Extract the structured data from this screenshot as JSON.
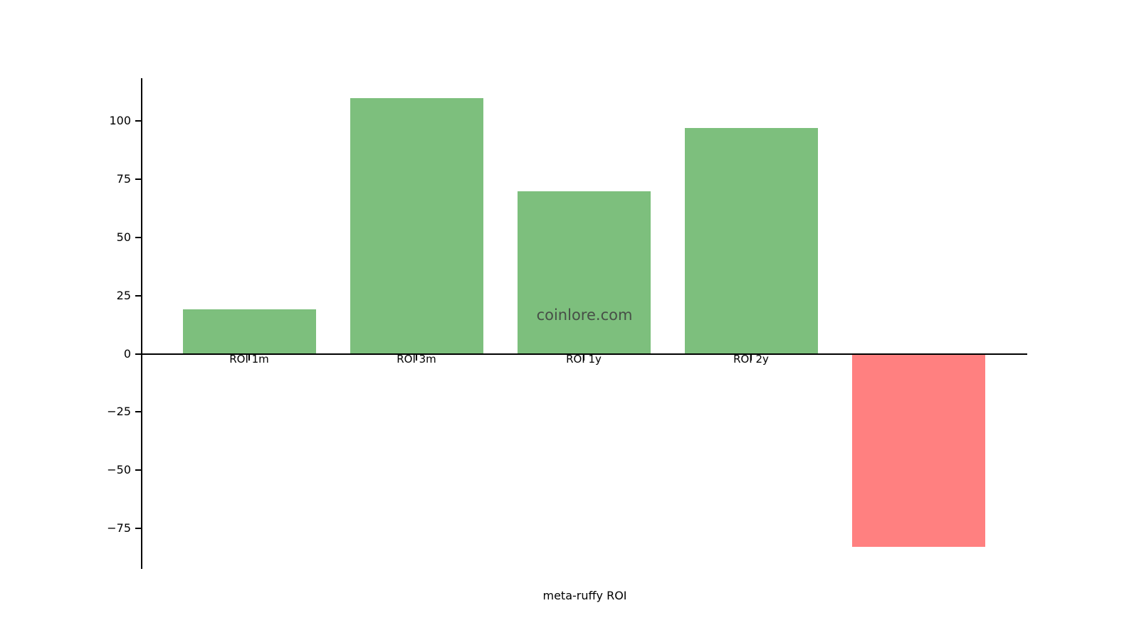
{
  "watermark": "coinlore.com",
  "chart_data": {
    "type": "bar",
    "title": "",
    "xlabel": "meta-ruffy ROI",
    "ylabel": "",
    "categories": [
      "ROI 1m",
      "ROI 3m",
      "ROI 1y",
      "ROI 2y",
      ""
    ],
    "values": [
      19,
      110,
      70,
      97,
      -83
    ],
    "yticks": [
      100,
      75,
      50,
      25,
      0,
      -25,
      -50,
      -75
    ],
    "ylim": [
      -92.5,
      118.5
    ],
    "grid": false,
    "legend": null,
    "positive_color": "#7dbf7d",
    "negative_color": "#ff8080",
    "axis_color": "#000000"
  }
}
